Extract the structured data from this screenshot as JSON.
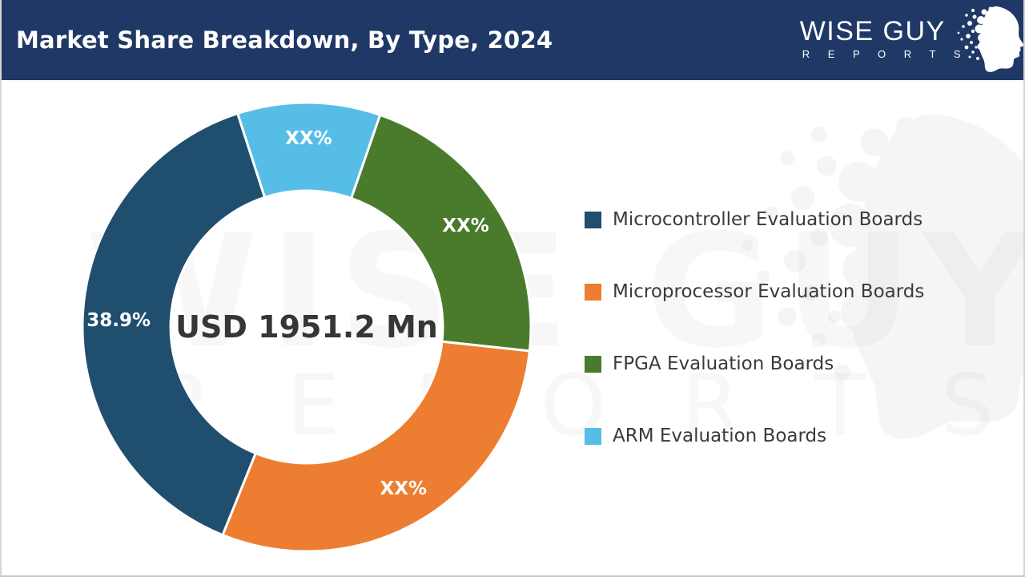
{
  "header": {
    "title": "Market Share Breakdown, By Type, 2024",
    "background": "#203865",
    "logo": {
      "name": "WISE GUY",
      "subtitle": "R E P O R T S"
    }
  },
  "chart_data": {
    "type": "pie",
    "subtype": "donut",
    "title": "Market Share Breakdown, By Type, 2024",
    "center_label": "USD 1951.2 Mn",
    "legend_position": "right",
    "start_angle_deg": 202,
    "slices": [
      {
        "name": "Microcontroller Evaluation Boards",
        "label": "38.9%",
        "share_pct": 38.9,
        "color": "#1F4E6E"
      },
      {
        "name": "ARM Evaluation Boards",
        "label": "XX%",
        "share_pct": 10.3,
        "color": "#56BEE6"
      },
      {
        "name": "FPGA Evaluation Boards",
        "label": "XX%",
        "share_pct": 21.4,
        "color": "#4A7B2D"
      },
      {
        "name": "Microprocessor Evaluation Boards",
        "label": "XX%",
        "share_pct": 29.4,
        "color": "#ED7D31"
      }
    ],
    "legend_order": [
      0,
      3,
      2,
      1
    ]
  },
  "watermark": {
    "line1": "WISE GUY",
    "line2": "R E P O R T S"
  }
}
